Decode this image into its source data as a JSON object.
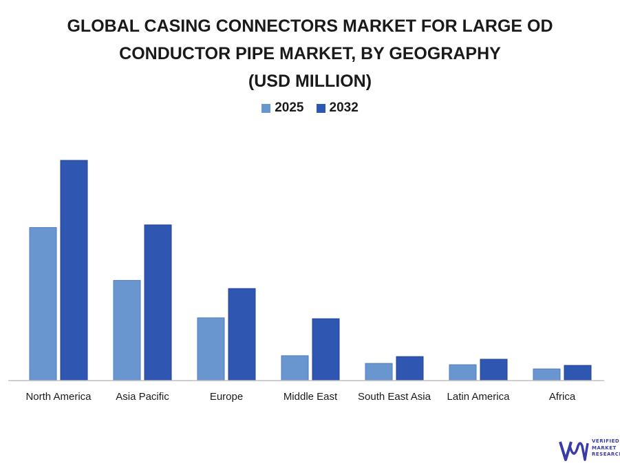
{
  "title_lines": [
    "GLOBAL CASING CONNECTORS MARKET FOR LARGE OD",
    "CONDUCTOR PIPE MARKET, BY GEOGRAPHY",
    "(USD MILLION)"
  ],
  "logo": {
    "lines": [
      "VERIFIED",
      "MARKET",
      "RESEARCH"
    ]
  },
  "colors": {
    "series_2025": "#6a96cf",
    "series_2032": "#2f56b0",
    "axis": "#bfbfbf",
    "text": "#1a1a1a"
  },
  "chart_data": {
    "type": "bar",
    "title": "GLOBAL CASING CONNECTORS MARKET FOR LARGE OD CONDUCTOR PIPE MARKET, BY GEOGRAPHY (USD MILLION)",
    "xlabel": "",
    "ylabel": "",
    "legend": "top-center",
    "grid": false,
    "ylim": [
      0,
      100
    ],
    "categories": [
      "North America",
      "Asia Pacific",
      "Europe",
      "Middle East",
      "South East Asia",
      "Latin America",
      "Africa"
    ],
    "series": [
      {
        "name": "2025",
        "values": [
          69.5,
          45.5,
          28.5,
          11.3,
          7.8,
          7.2,
          5.3
        ]
      },
      {
        "name": "2032",
        "values": [
          100,
          70.7,
          41.8,
          28.1,
          10.9,
          9.7,
          6.9
        ]
      }
    ]
  }
}
